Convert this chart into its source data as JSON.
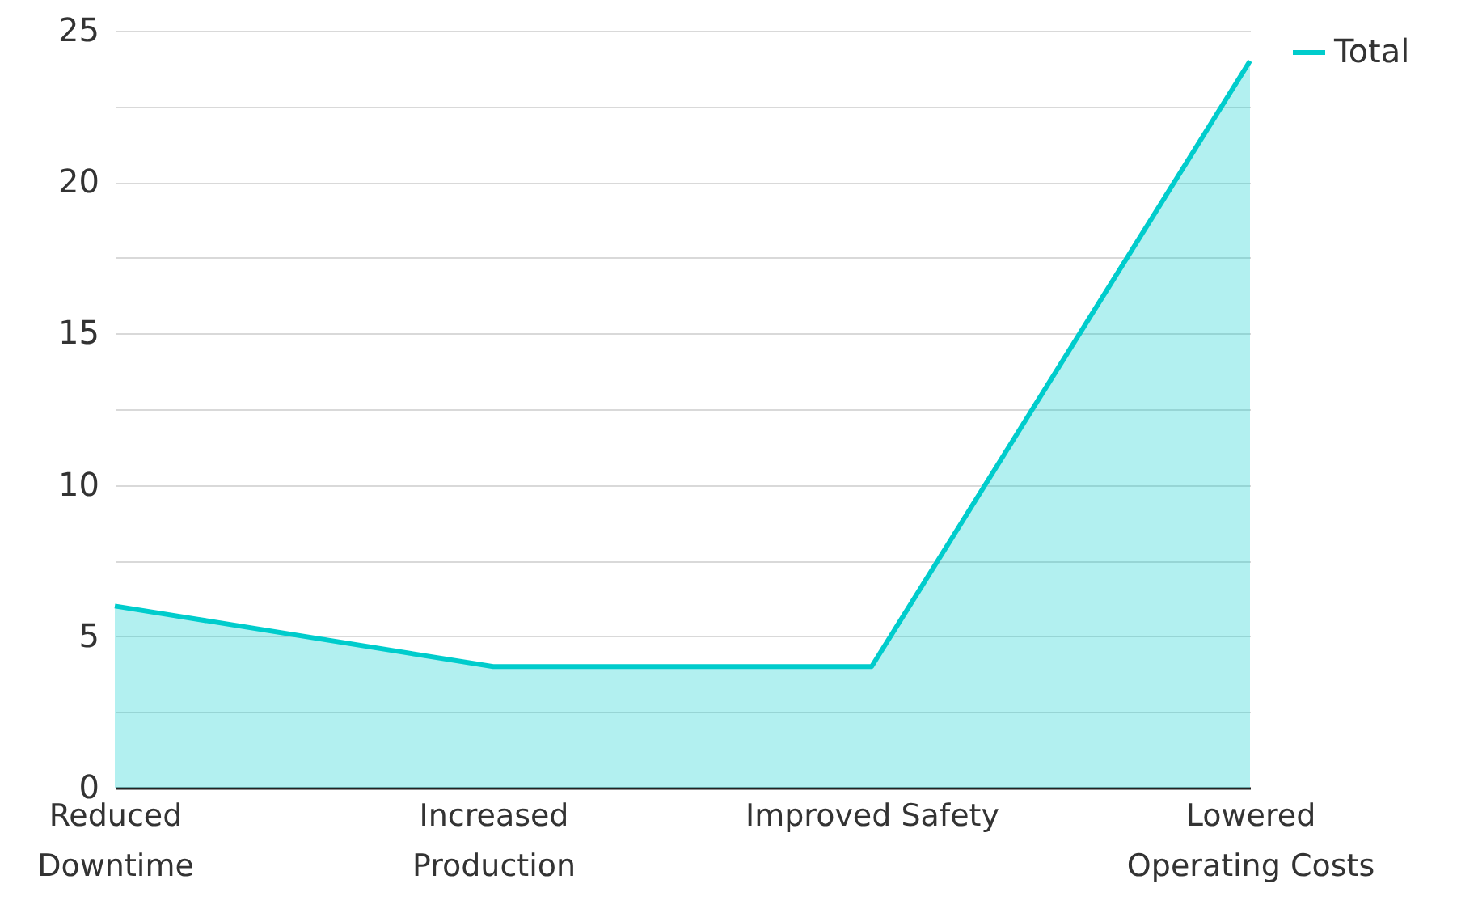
{
  "chart_data": {
    "type": "area",
    "categories": [
      "Reduced Downtime",
      "Increased Production",
      "Improved Safety",
      "Lowered Operating Costs"
    ],
    "series": [
      {
        "name": "Total",
        "color": "#00cccc",
        "values": [
          6,
          4,
          4,
          24
        ]
      }
    ],
    "ylim": [
      0,
      25
    ],
    "yticks": [
      0,
      {
        "value": 2.5,
        "label": null
      },
      5,
      {
        "value": 7.5,
        "label": null
      },
      10,
      {
        "value": 12.5,
        "label": null
      },
      15,
      {
        "value": 17.5,
        "label": null
      },
      20,
      {
        "value": 22.5,
        "label": null
      },
      25
    ],
    "grid": "y",
    "legend": "top right",
    "marker": "none",
    "line_style": "solid"
  }
}
